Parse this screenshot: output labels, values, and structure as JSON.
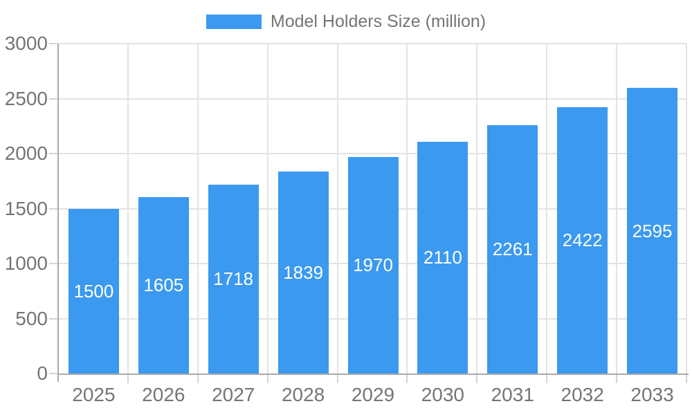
{
  "chart_data": {
    "type": "bar",
    "title": "Model Holders Size (million)",
    "categories": [
      "2025",
      "2026",
      "2027",
      "2028",
      "2029",
      "2030",
      "2031",
      "2032",
      "2033"
    ],
    "values": [
      1500,
      1605,
      1718,
      1839,
      1970,
      2110,
      2261,
      2422,
      2595
    ],
    "xlabel": "",
    "ylabel": "",
    "ylim": [
      0,
      3000
    ],
    "yticks": [
      0,
      500,
      1000,
      1500,
      2000,
      2500,
      3000
    ],
    "grid": "on",
    "legend_position": "top-center",
    "value_labels": "inside-center"
  },
  "legend": {
    "label": "Model Holders Size (million)"
  },
  "colors": {
    "bar": "#3B99EF",
    "bar_label": "#FFFFFF",
    "axis_line": "#AAAAAA",
    "gridline": "#E3E3E3",
    "tick_mark": "#D4D4D4",
    "tick_text": "#757575",
    "background": "#FFFFFF"
  }
}
